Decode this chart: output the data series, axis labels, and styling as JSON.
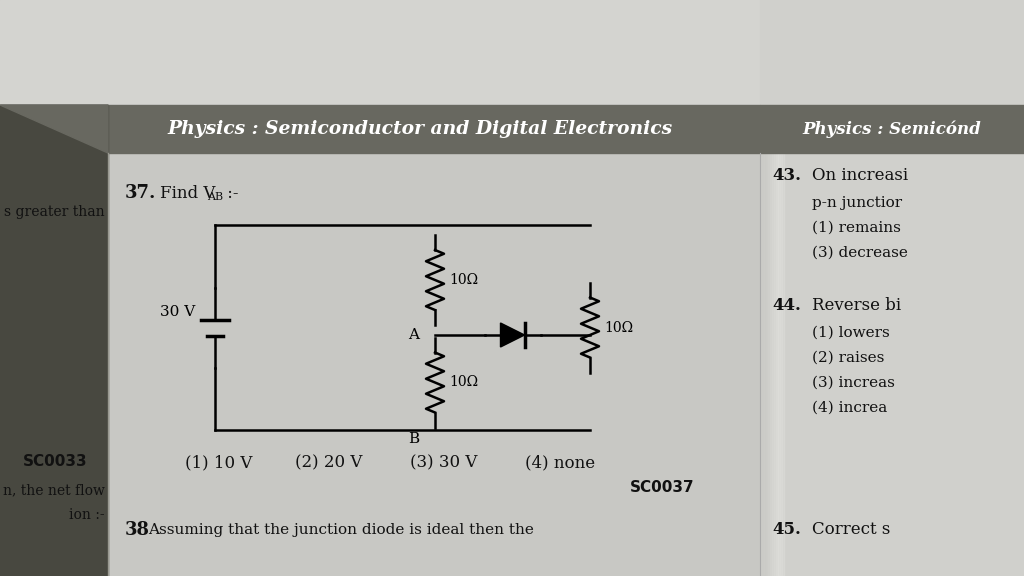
{
  "bg_color_top": "#d8d8d4",
  "bg_color_main": "#c4c4c0",
  "header_bg": "#686860",
  "header_text": "Physics : Semiconductor and Digital Electronics",
  "header_text2": "Physics : Semicónd",
  "right_bg": "#d0d0cc",
  "right_header_bg": "#707068",
  "left_col_bg": "#b0b0ac",
  "left_dark_bg": "#383830",
  "left_text": "s greater than",
  "q_number": "37.",
  "voltage_label": "30 V",
  "r1_label": "10Ω",
  "r2_label": "10Ω",
  "r3_label": "10Ω",
  "node_a": "A",
  "node_b": "B",
  "ans1": "(1) 10 V",
  "ans2": "(2) 20 V",
  "ans3": "(3) 30 V",
  "ans4": "(4) none",
  "sc_left": "SC0033",
  "sc_right": "SC0037",
  "left_text2": "n, the net flow",
  "left_text3": "ion :-",
  "q38": "38",
  "q38_text": "Assuming that the junction diode is ideal then the",
  "right_q43_num": "43.",
  "right_q43_text": "On increasi",
  "right_q43_sub1": "p-n junctior",
  "right_q43_sub2": "(1) remains",
  "right_q43_sub3": "(3) decrease",
  "right_q44_num": "44.",
  "right_q44_text": "Reverse bi",
  "right_q44_opt1": "(1) lowers",
  "right_q44_opt2": "(2) raises",
  "right_q44_opt3": "(3) increas",
  "right_q44_opt4": "(4) increa",
  "right_q45_num": "45.",
  "right_q45_text": "Correct s"
}
